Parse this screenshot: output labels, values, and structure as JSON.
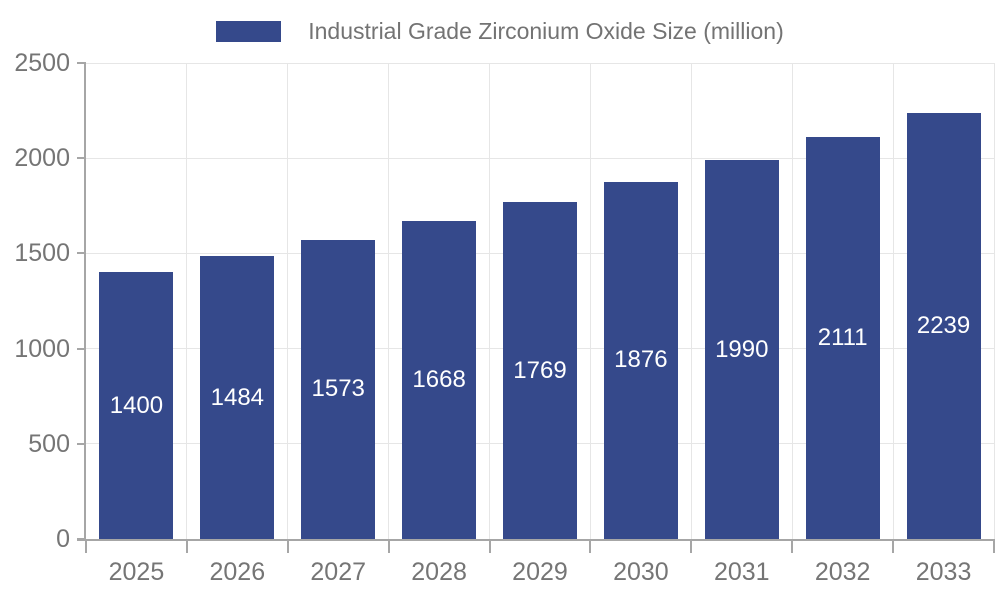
{
  "legend": {
    "label": "Industrial Grade Zirconium Oxide Size (million)"
  },
  "colors": {
    "bar": "#35498b",
    "grid": "#e6e6e6",
    "axis": "#a6a6a6",
    "tick_label": "#757575",
    "legend_text": "#737373",
    "bar_label": "#ffffff",
    "background": "#ffffff"
  },
  "chart_data": {
    "type": "bar",
    "categories": [
      "2025",
      "2026",
      "2027",
      "2028",
      "2029",
      "2030",
      "2031",
      "2032",
      "2033"
    ],
    "values": [
      1400,
      1484,
      1573,
      1668,
      1769,
      1876,
      1990,
      2111,
      2239
    ],
    "title": "Industrial Grade Zirconium Oxide Size (million)",
    "xlabel": "",
    "ylabel": "",
    "ylim": [
      0,
      2500
    ],
    "yticks": [
      0,
      500,
      1000,
      1500,
      2000,
      2500
    ],
    "grid": true,
    "legend_position": "top",
    "bar_color": "#35498b",
    "value_label_position": "inside-center",
    "value_label_color": "#ffffff"
  }
}
